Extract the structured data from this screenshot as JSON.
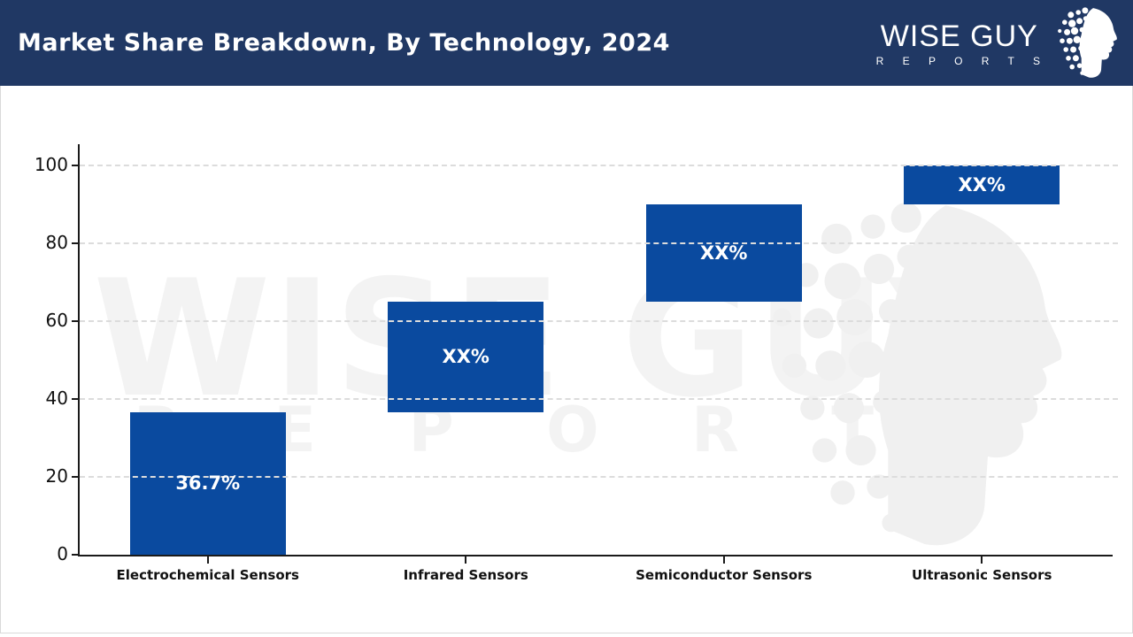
{
  "header": {
    "title": "Market Share Breakdown, By Technology, 2024",
    "bg_color": "#203864",
    "logo": {
      "line1": "WISE GUY",
      "line2": "R E P O R T S"
    }
  },
  "watermark": {
    "line1": "WISE GUY.",
    "line2": "R E P O R T S"
  },
  "chart_data": {
    "type": "bar",
    "subtype": "waterfall",
    "title": "Market Share Breakdown, By Technology, 2024",
    "xlabel": "",
    "ylabel": "",
    "categories": [
      "Electrochemical Sensors",
      "Infrared Sensors",
      "Semiconductor Sensors",
      "Ultrasonic Sensors"
    ],
    "segments": [
      {
        "start": 0,
        "end": 36.7,
        "label": "36.7%"
      },
      {
        "start": 36.7,
        "end": 65,
        "label": "XX%"
      },
      {
        "start": 65,
        "end": 90,
        "label": "XX%"
      },
      {
        "start": 90,
        "end": 100,
        "label": "XX%"
      }
    ],
    "yticks": [
      0,
      20,
      40,
      60,
      80,
      100
    ],
    "ylim": [
      0,
      105.5
    ],
    "grid": true,
    "grid_style": "dashed",
    "legend": "none",
    "bar_color": "#0a4a9f",
    "bar_label_color": "#ffffff",
    "axis_color": "#1a1a1a"
  }
}
